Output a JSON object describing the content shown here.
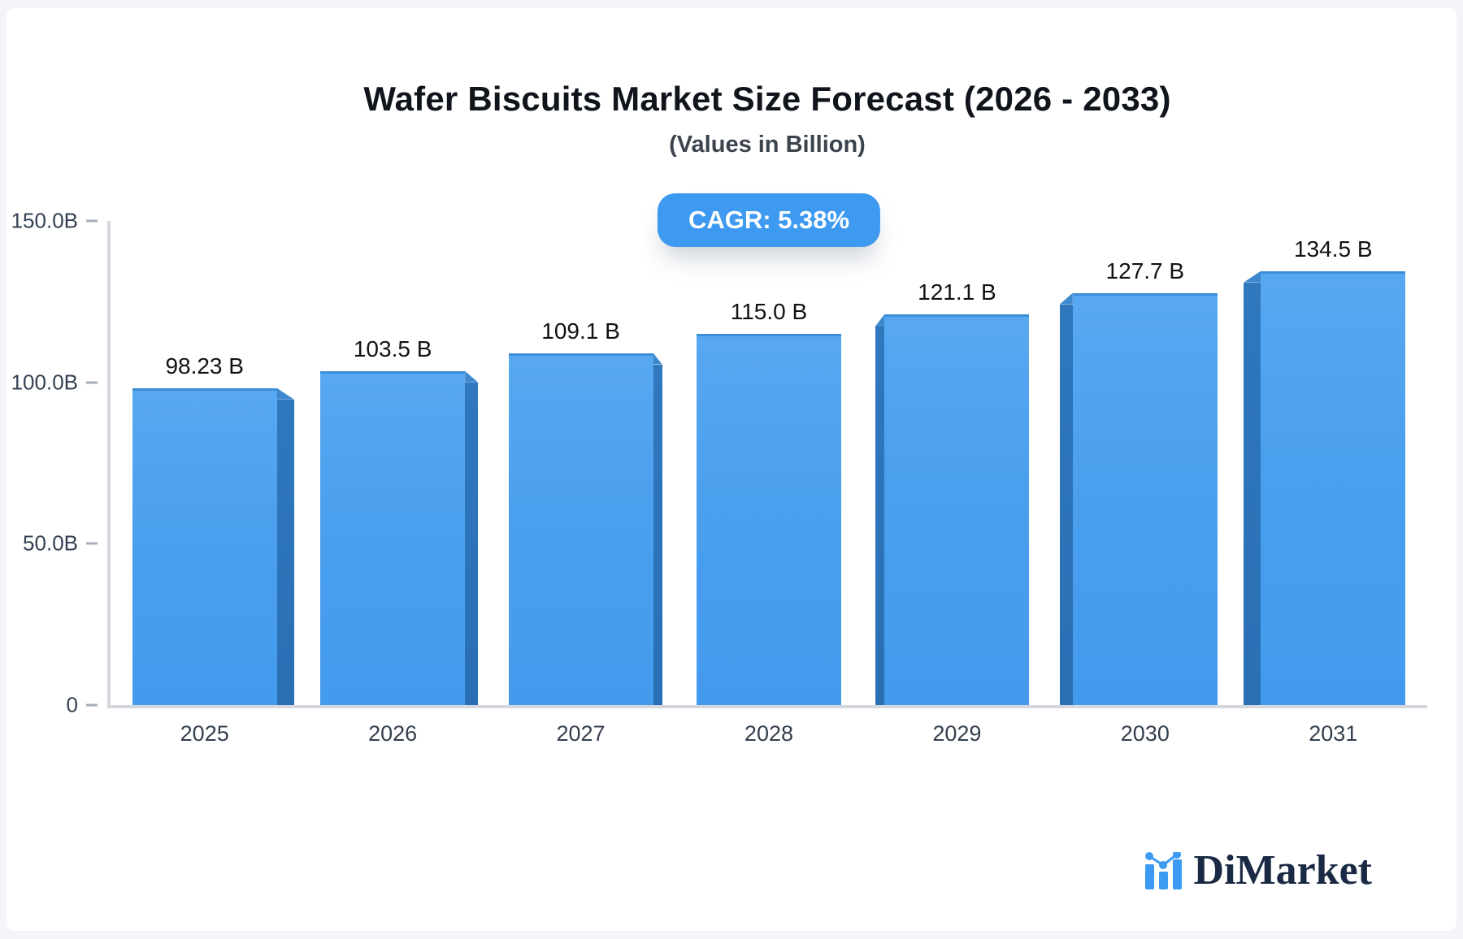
{
  "header": {
    "title": "Wafer Biscuits Market Size Forecast (2026 - 2033)",
    "subtitle": "(Values in Billion)"
  },
  "badge": {
    "label": "CAGR: 5.38%",
    "background": "#3e9af0",
    "text_color": "#ffffff"
  },
  "chart_data": {
    "type": "bar",
    "title": "Wafer Biscuits Market Size Forecast (2026 - 2033)",
    "subtitle": "(Values in Billion)",
    "annotation": "CAGR: 5.38%",
    "unit": "Billion",
    "categories": [
      "2025",
      "2026",
      "2027",
      "2028",
      "2029",
      "2030",
      "2031"
    ],
    "values": [
      98.23,
      103.5,
      109.1,
      115.0,
      121.1,
      127.7,
      134.5
    ],
    "value_labels": [
      "98.23 B",
      "103.5 B",
      "109.1 B",
      "115.0 B",
      "121.1 B",
      "127.7 B",
      "134.5 B"
    ],
    "y_ticks": [
      {
        "value": 150,
        "label": "150.0B"
      },
      {
        "value": 100,
        "label": "100.0B"
      },
      {
        "value": 50,
        "label": "50.0B"
      },
      {
        "value": 0,
        "label": "0"
      }
    ],
    "ylim": [
      0,
      150
    ],
    "grid": false,
    "legend": false,
    "bar_style": "3d",
    "colors": {
      "bar_face_top": "#58a8f1",
      "bar_face_bottom": "#449aed",
      "bar_top_edge": "#3c8ed9",
      "bar_side": "#2c73b9",
      "bar_bevel": "#3e88cf",
      "axis_line": "#d4d8de",
      "tick": "#a7aeb8",
      "axis_text": "#344154",
      "value_text": "#121212"
    }
  },
  "branding": {
    "name": "DiMarket",
    "icon": "bar-line-chart-icon",
    "icon_color": "#3d9af3",
    "text_color": "#1b2a44"
  }
}
